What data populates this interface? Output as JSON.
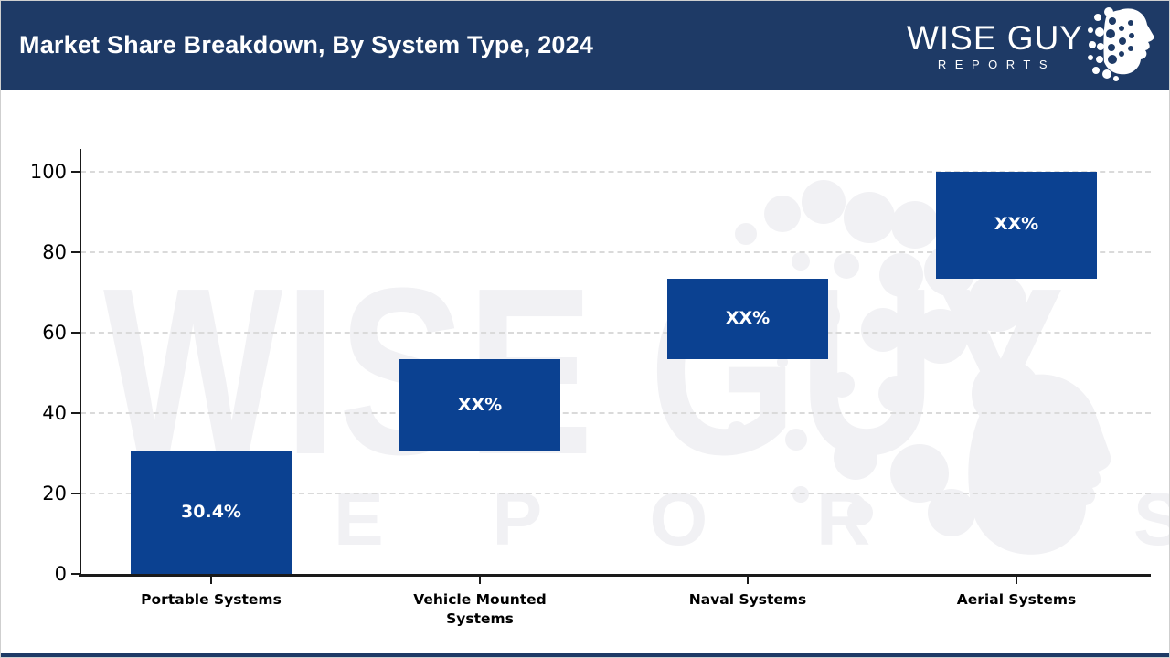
{
  "colors": {
    "header_bg": "#1E3A66",
    "footer_bg": "#1E3A66",
    "bar": "#0B4191",
    "bar_label": "#ffffff",
    "watermark": "#f1f1f4",
    "grid": "#dadada"
  },
  "header": {
    "title": "Market Share Breakdown, By System Type, 2024",
    "logo_line1": "WISE GUY",
    "logo_line2": "REPORTS"
  },
  "watermark": {
    "line1": "WISE GUY",
    "line2": "R E P O R T S"
  },
  "chart_data": {
    "type": "bar",
    "subtype": "waterfall",
    "title": "Market Share Breakdown, By System Type, 2024",
    "xlabel": "",
    "ylabel": "",
    "ylim": [
      0,
      100
    ],
    "yticks": [
      0,
      20,
      40,
      60,
      80,
      100
    ],
    "grid": "horizontal-dashed",
    "legend": "none",
    "categories": [
      "Portable Systems",
      "Vehicle Mounted\nSystems",
      "Naval Systems",
      "Aerial Systems"
    ],
    "segments": [
      {
        "category": "Portable Systems",
        "start": 0,
        "end": 30.4,
        "label": "30.4%"
      },
      {
        "category": "Vehicle Mounted Systems",
        "start": 30.4,
        "end": 53.3,
        "label": "XX%"
      },
      {
        "category": "Naval Systems",
        "start": 53.3,
        "end": 73.5,
        "label": "XX%"
      },
      {
        "category": "Aerial Systems",
        "start": 73.5,
        "end": 100,
        "label": "XX%"
      }
    ]
  }
}
